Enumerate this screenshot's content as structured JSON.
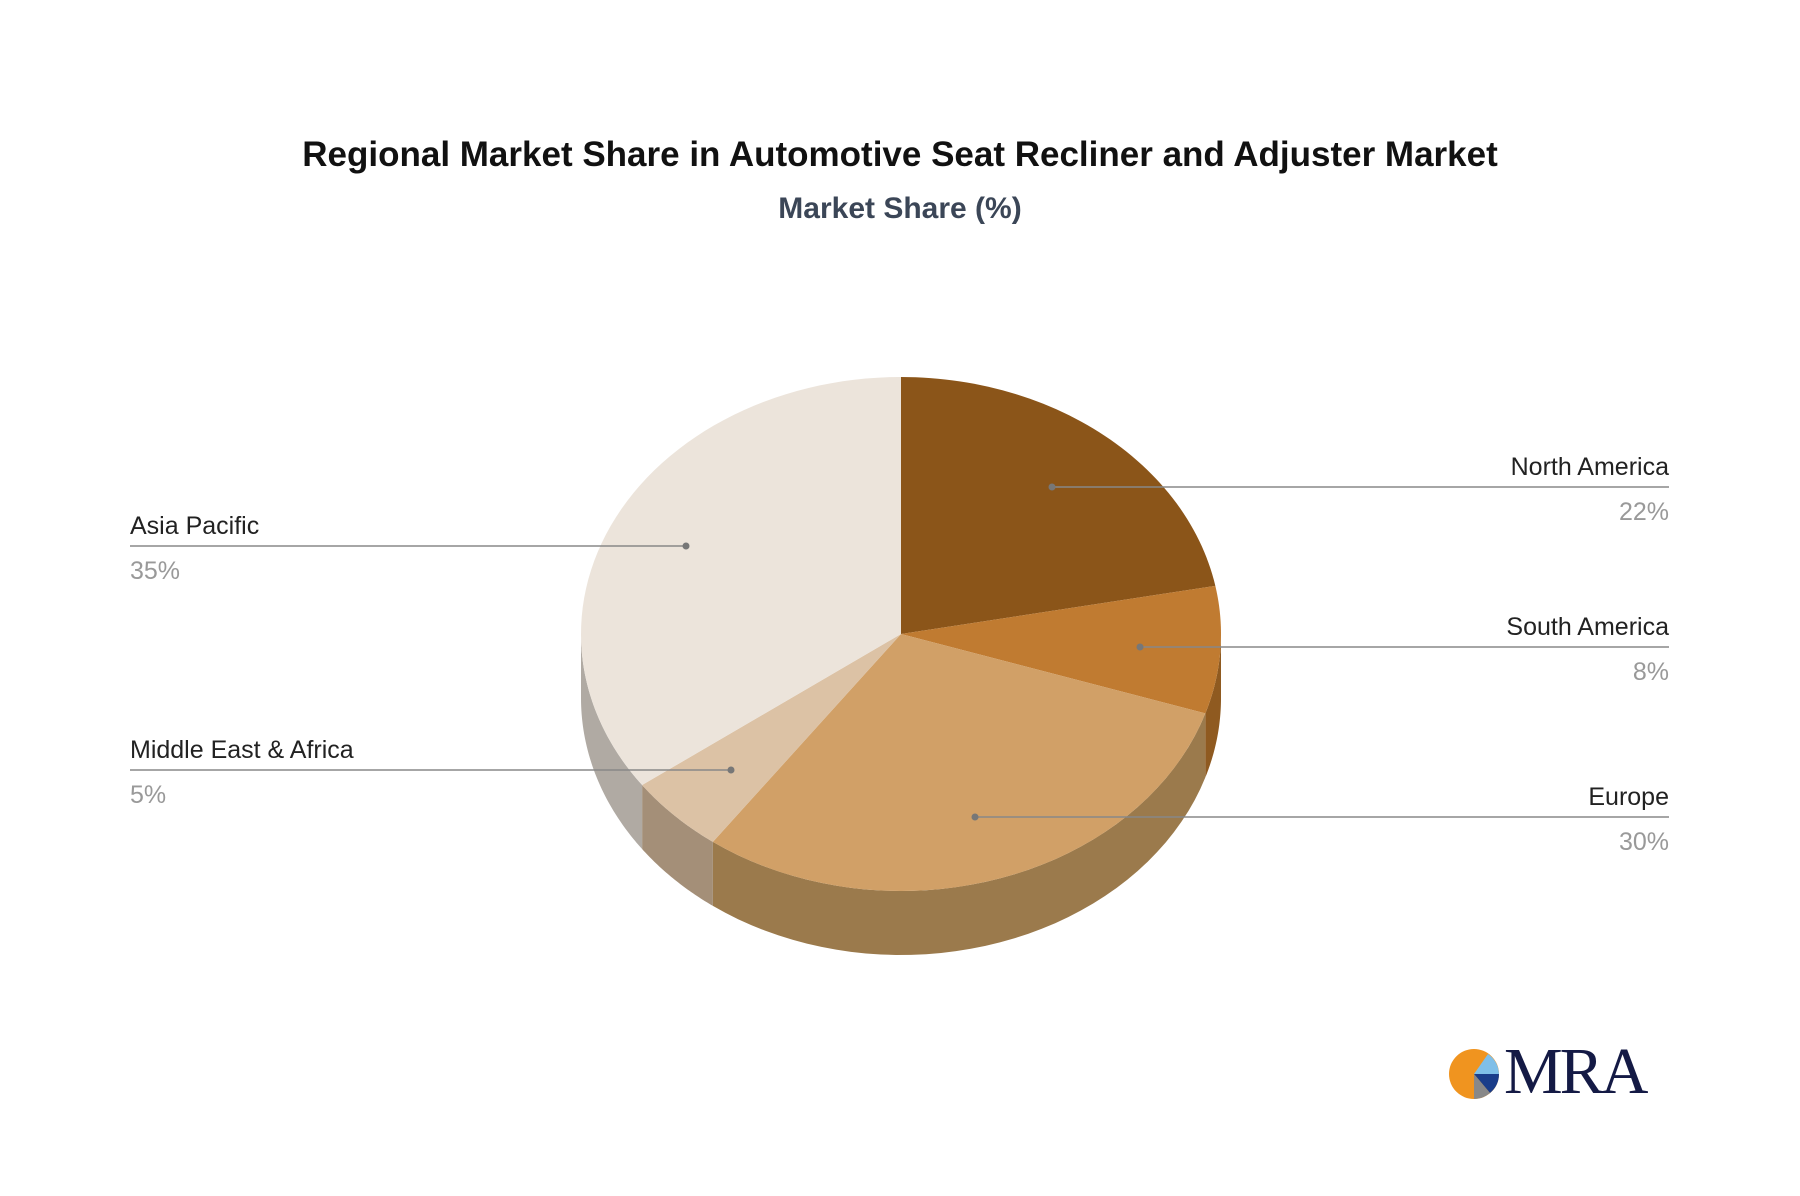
{
  "chart_data": {
    "type": "pie",
    "title": "Regional Market Share in Automotive Seat Recliner and Adjuster Market",
    "subtitle": "Market Share (%)",
    "three_d": true,
    "slices": [
      {
        "label": "North America",
        "value": 22,
        "pct_label": "22%",
        "color": "#8b5519",
        "side_color": "#8c5820",
        "side": "right"
      },
      {
        "label": "South America",
        "value": 8,
        "pct_label": "8%",
        "color": "#c07b31",
        "side_color": "#8f5a20",
        "side": "right"
      },
      {
        "label": "Europe",
        "value": 30,
        "pct_label": "30%",
        "color": "#d1a067",
        "side_color": "#9b7a4c",
        "side": "right"
      },
      {
        "label": "Middle East & Africa",
        "value": 5,
        "pct_label": "5%",
        "color": "#dcc2a5",
        "side_color": "#a48f78",
        "side": "left"
      },
      {
        "label": "Asia Pacific",
        "value": 35,
        "pct_label": "35%",
        "color": "#ece4db",
        "side_color": "#b0aaa3",
        "side": "left"
      }
    ]
  },
  "logo": {
    "text": "MRA",
    "colors": [
      "#f0941f",
      "#7fbfe8",
      "#1a3d8a",
      "#888888"
    ]
  }
}
